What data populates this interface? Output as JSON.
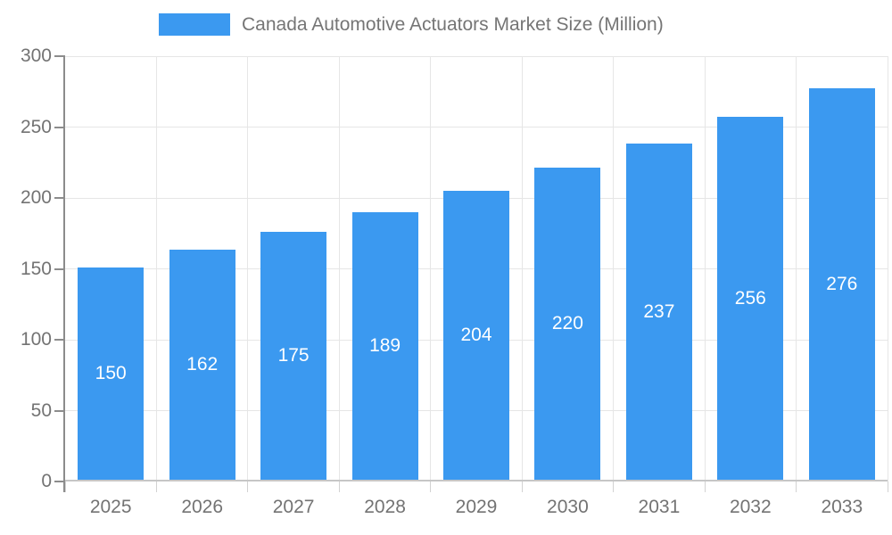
{
  "chart_data": {
    "type": "bar",
    "title": "Canada Automotive Actuators Market Size (Million)",
    "categories": [
      "2025",
      "2026",
      "2027",
      "2028",
      "2029",
      "2030",
      "2031",
      "2032",
      "2033"
    ],
    "values": [
      150,
      162,
      175,
      189,
      204,
      220,
      237,
      256,
      276
    ],
    "xlabel": "",
    "ylabel": "",
    "ylim": [
      0,
      300
    ],
    "yticks": [
      0,
      50,
      100,
      150,
      200,
      250,
      300
    ],
    "grid": true,
    "legend_position": "top",
    "bar_value_labels_shown": true
  },
  "legend": {
    "label": "Canada Automotive Actuators Market Size (Million)"
  },
  "colors": {
    "bar": "#3b99f0",
    "gridline": "#e6e6e6",
    "axis_line": "#8c8c8c",
    "baseline": "#c6c6c6",
    "x_tick": "#d2d2d2",
    "tick_label": "#737373",
    "legend_text": "#757575",
    "bar_label": "#ffffff",
    "background": "#ffffff"
  }
}
